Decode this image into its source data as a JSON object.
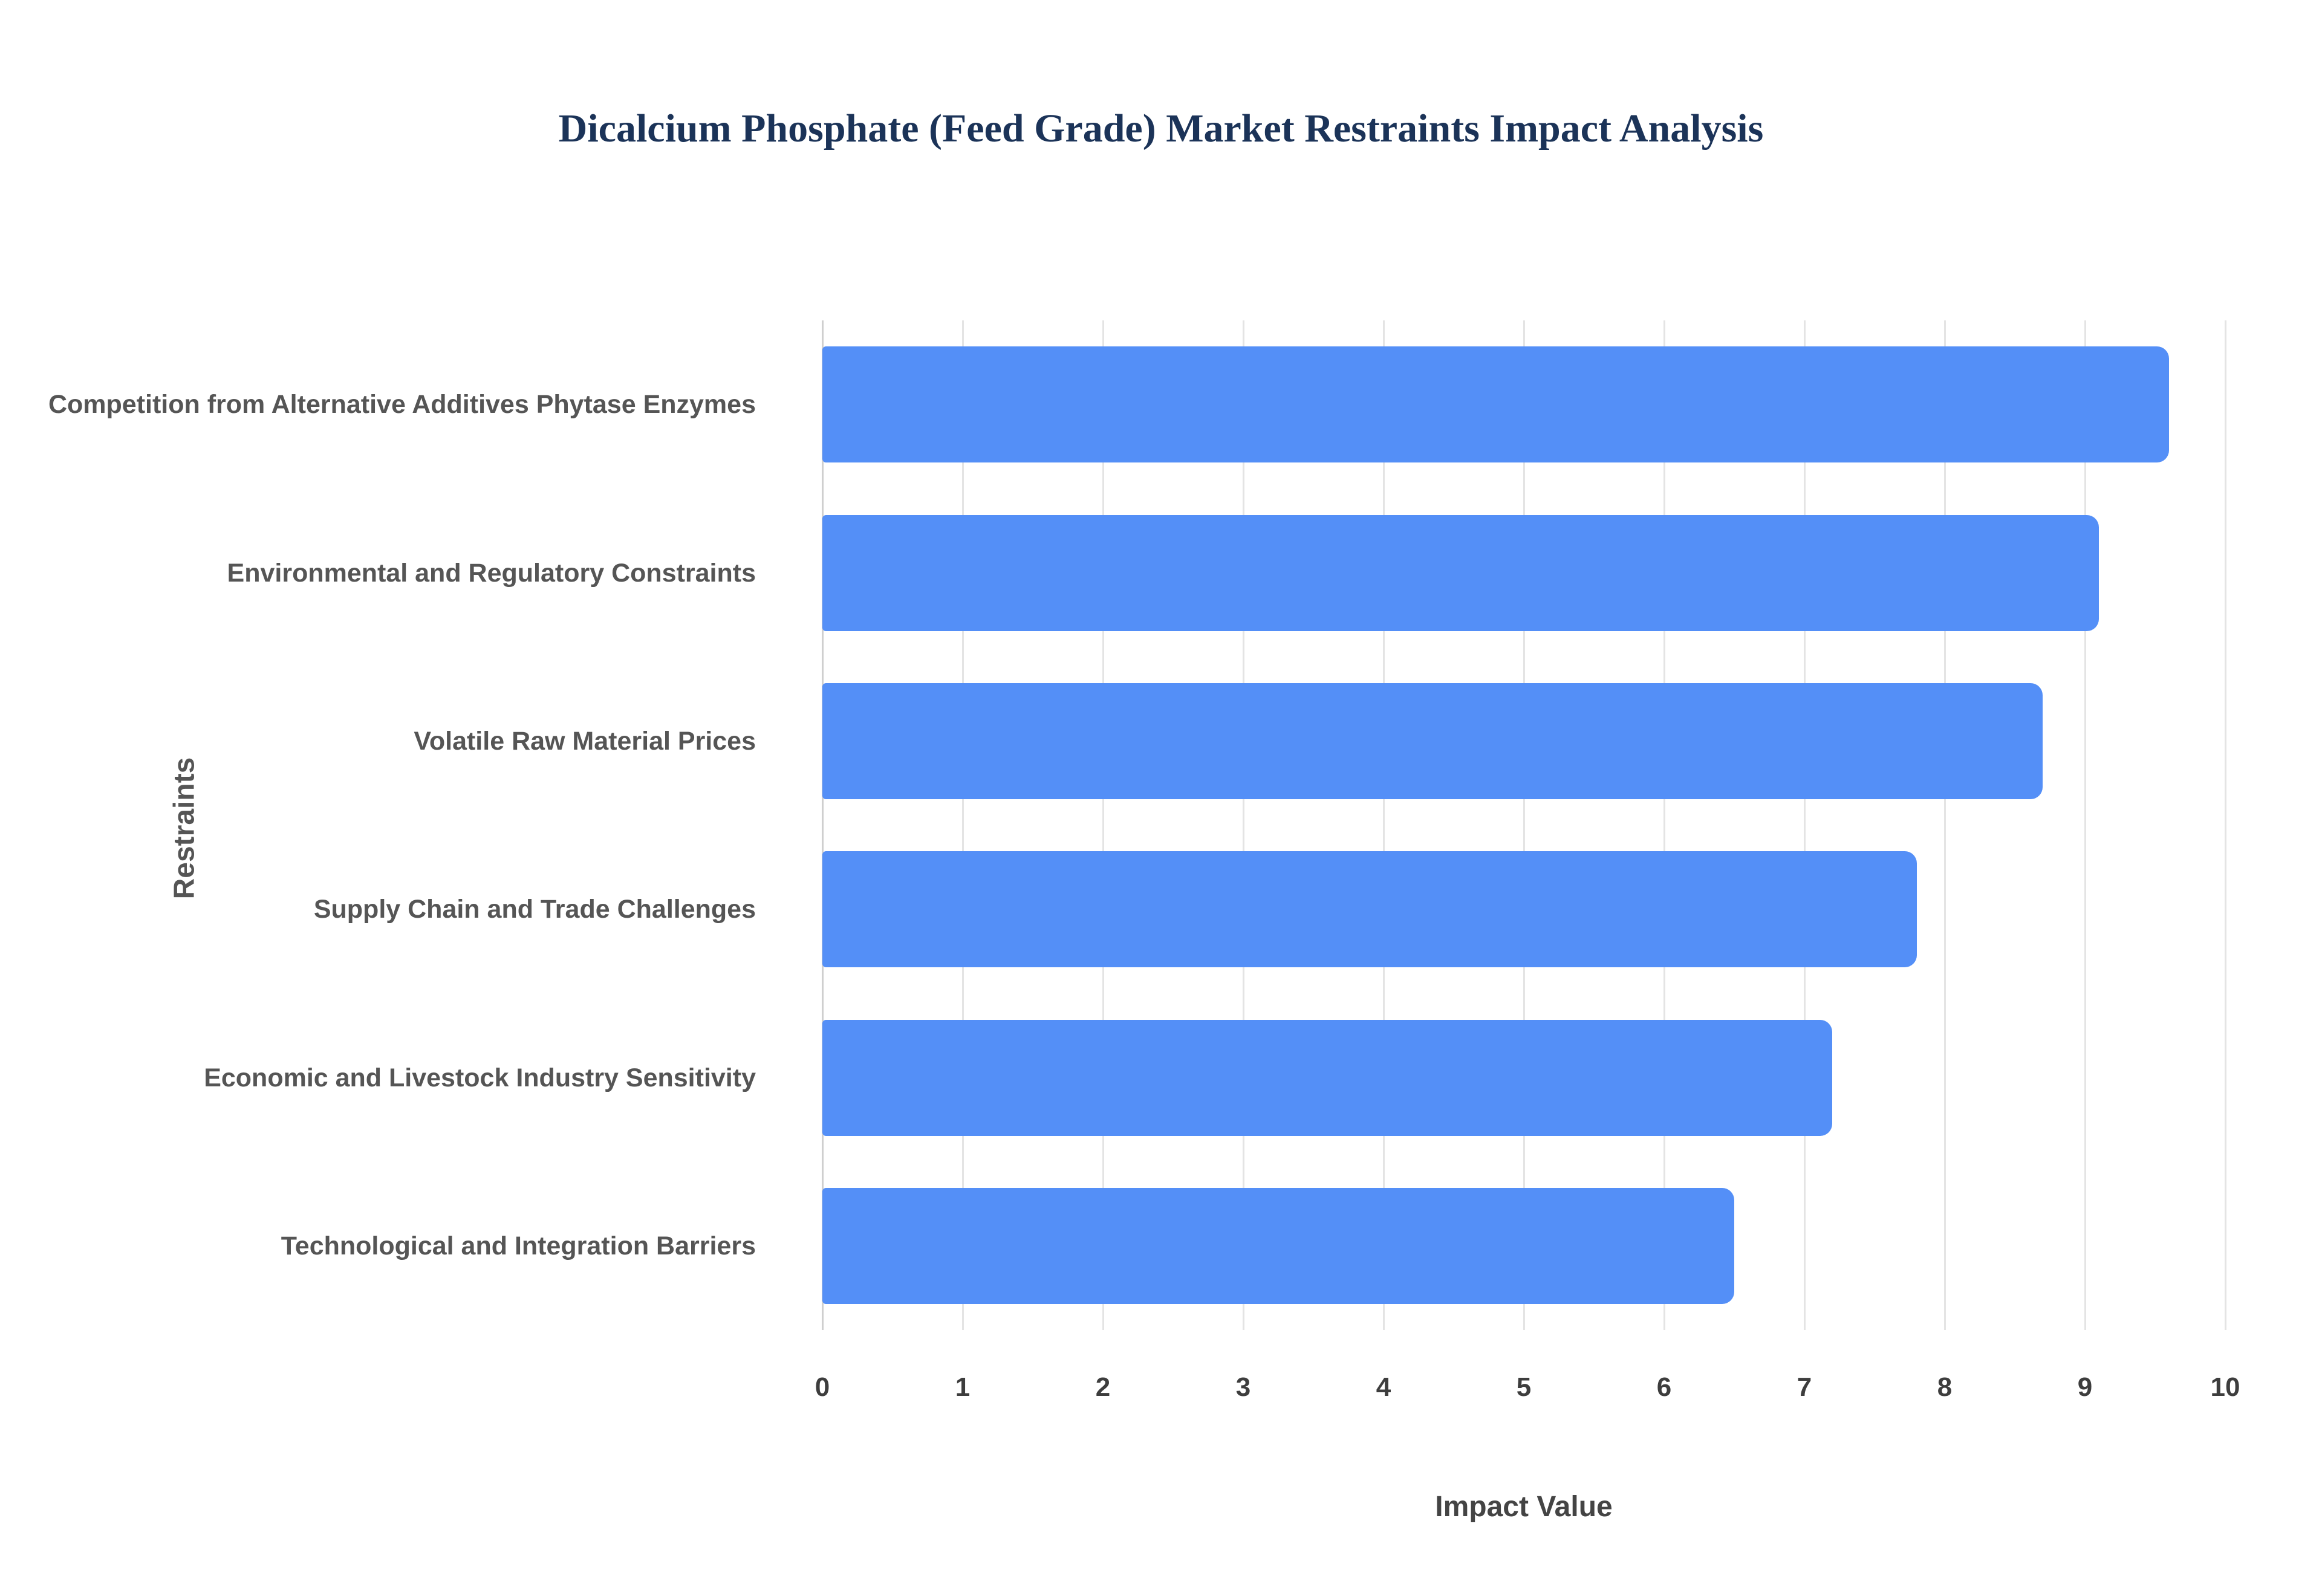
{
  "chart_data": {
    "type": "bar",
    "orientation": "horizontal",
    "title": "Dicalcium Phosphate (Feed Grade) Market Restraints Impact Analysis",
    "categories": [
      "Competition from Alternative Additives Phytase Enzymes",
      "Environmental and Regulatory Constraints",
      "Volatile Raw Material Prices",
      "Supply Chain and Trade Challenges",
      "Economic and Livestock Industry Sensitivity",
      "Technological and Integration Barriers"
    ],
    "values": [
      9.6,
      9.1,
      8.7,
      7.8,
      7.2,
      6.5
    ],
    "xlabel": "Impact Value",
    "ylabel": "Restraints",
    "xlim": [
      0,
      10
    ],
    "xticks": [
      0,
      1,
      2,
      3,
      4,
      5,
      6,
      7,
      8,
      9,
      10
    ],
    "grid": true,
    "legend": false,
    "bar_color": "#548ff7",
    "background_color": "#ffffff",
    "title_color": "#1b3358",
    "label_color": "#555555"
  }
}
